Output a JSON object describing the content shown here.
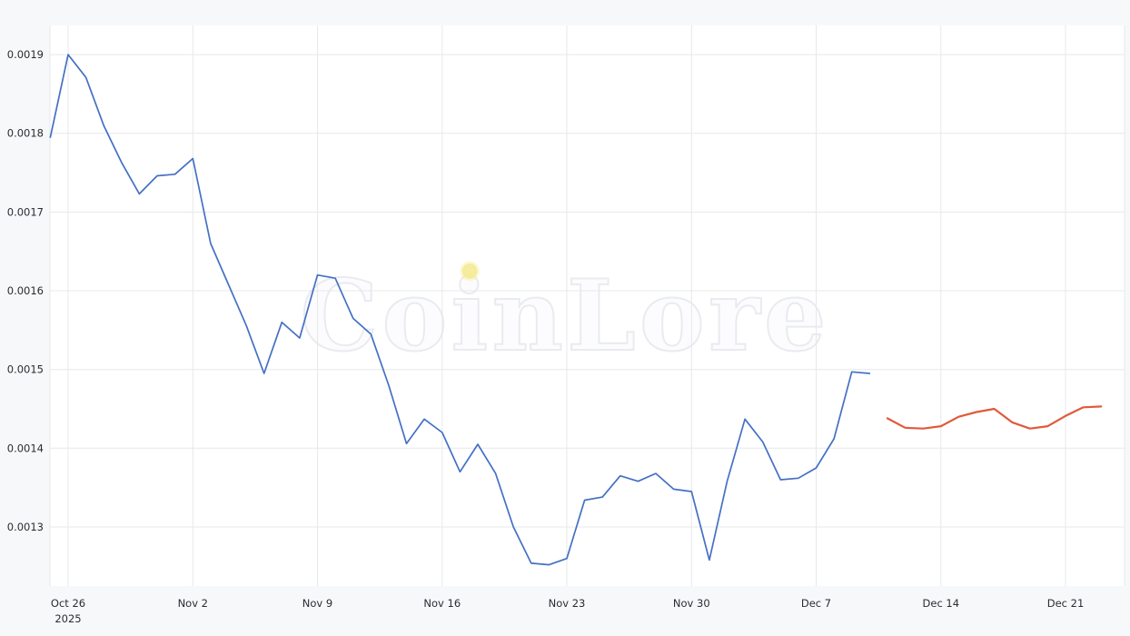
{
  "page": {
    "background_color": "#f7f8fa",
    "plot_background_color": "#ffffff"
  },
  "chart_data": {
    "type": "line",
    "title": "",
    "watermark": "CoinLore",
    "grid": true,
    "grid_color": "#e7e8ea",
    "tick_color": "#2b2c30",
    "legend": "none",
    "ylim": [
      0.001225,
      0.001937
    ],
    "y_axis": {
      "ticks": [
        {
          "value": 0.0013,
          "label": "0.0013"
        },
        {
          "value": 0.0014,
          "label": "0.0014"
        },
        {
          "value": 0.0015,
          "label": "0.0015"
        },
        {
          "value": 0.0016,
          "label": "0.0016"
        },
        {
          "value": 0.0017,
          "label": "0.0017"
        },
        {
          "value": 0.0018,
          "label": "0.0018"
        },
        {
          "value": 0.0019,
          "label": "0.0019"
        }
      ]
    },
    "x_axis": {
      "ticks": [
        {
          "day": 0,
          "label": "Oct 26",
          "sublabel": "2025"
        },
        {
          "day": 7,
          "label": "Nov 2"
        },
        {
          "day": 14,
          "label": "Nov 9"
        },
        {
          "day": 21,
          "label": "Nov 16"
        },
        {
          "day": 28,
          "label": "Nov 23"
        },
        {
          "day": 35,
          "label": "Nov 30"
        },
        {
          "day": 42,
          "label": "Dec 7"
        },
        {
          "day": 49,
          "label": "Dec 14"
        },
        {
          "day": 56,
          "label": "Dec 21"
        }
      ]
    },
    "series": [
      {
        "name": "price-history",
        "color": "#4470c4",
        "width": 1.7,
        "days_from_oct26": [
          -1,
          0,
          1,
          2,
          3,
          4,
          5,
          6,
          7,
          8,
          9,
          10,
          11,
          12,
          13,
          14,
          15,
          16,
          17,
          18,
          19,
          20,
          21,
          22,
          23,
          24,
          25,
          26,
          27,
          28,
          29,
          30,
          31,
          32,
          33,
          34,
          35,
          36,
          37,
          38,
          39,
          40,
          41,
          42,
          43,
          44,
          45
        ],
        "values": [
          0.001795,
          0.0019,
          0.001871,
          0.00181,
          0.001763,
          0.001723,
          0.001746,
          0.001748,
          0.001768,
          0.00166,
          0.001608,
          0.001556,
          0.001495,
          0.00156,
          0.00154,
          0.00162,
          0.001616,
          0.001565,
          0.001545,
          0.00148,
          0.001406,
          0.001437,
          0.00142,
          0.00137,
          0.001405,
          0.001368,
          0.0013,
          0.001254,
          0.001252,
          0.00126,
          0.001334,
          0.001338,
          0.001365,
          0.001358,
          0.001368,
          0.001348,
          0.001345,
          0.001258,
          0.001358,
          0.001437,
          0.001408,
          0.00136,
          0.001362,
          0.001375,
          0.001412,
          0.001497,
          0.001495
        ]
      },
      {
        "name": "forecast",
        "color": "#e2593b",
        "width": 2.2,
        "days_from_oct26": [
          46,
          47,
          48,
          49,
          50,
          51,
          52,
          53,
          54,
          55,
          56,
          57,
          58
        ],
        "values": [
          0.001438,
          0.001426,
          0.001425,
          0.001428,
          0.00144,
          0.001446,
          0.00145,
          0.001433,
          0.001425,
          0.001428,
          0.001441,
          0.001452,
          0.001453
        ]
      }
    ],
    "highlight_dot": {
      "day": 22.55,
      "value": 0.001625,
      "color": "#f5ea96"
    }
  }
}
